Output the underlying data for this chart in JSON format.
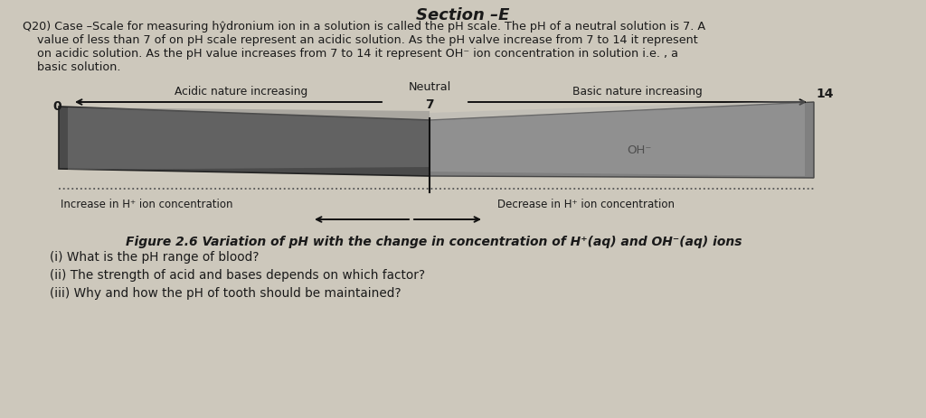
{
  "bg_color": "#cdc8bc",
  "title": "Section –E",
  "para_line1": "Q20) Case –Scale for measuring hŷdronium ion in a solution is called the pH scale. The pH of a neutral solution is 7. A",
  "para_line2": "    value of less than 7 of on pH scale represent an acidic solution. As the pH valve increase from 7 to 14 it represent",
  "para_line3": "    on acidic solution. As the pH value increases from 7 to 14 it represent OH⁻ ion concentration in solution i.e. , a",
  "para_line4": "    basic solution.",
  "fig_caption": "Figure 2.6 Variation of pH with the change in concentration of H⁺(aq) and OH⁻(aq) ions",
  "questions": [
    "(i) What is the pH range of blood?",
    "(ii) The strength of acid and bases depends on which factor?",
    "(iii) Why and how the pH of tooth should be maintained?"
  ],
  "label_0": "0",
  "label_7": "7",
  "label_14": "14",
  "label_neutral": "Neutral",
  "label_acidic": "Acidic nature increasing",
  "label_basic": "Basic nature increasing",
  "label_oh": "OH⁻",
  "label_increase_h": "Increase in H⁺ ion concentration",
  "label_decrease_h": "Decrease in H⁺ ion concentration",
  "dark_gray": "#4a4a4a",
  "medium_gray": "#808080",
  "light_gray": "#b0b0b0",
  "dotted_color": "#555555",
  "text_color": "#1a1a1a"
}
